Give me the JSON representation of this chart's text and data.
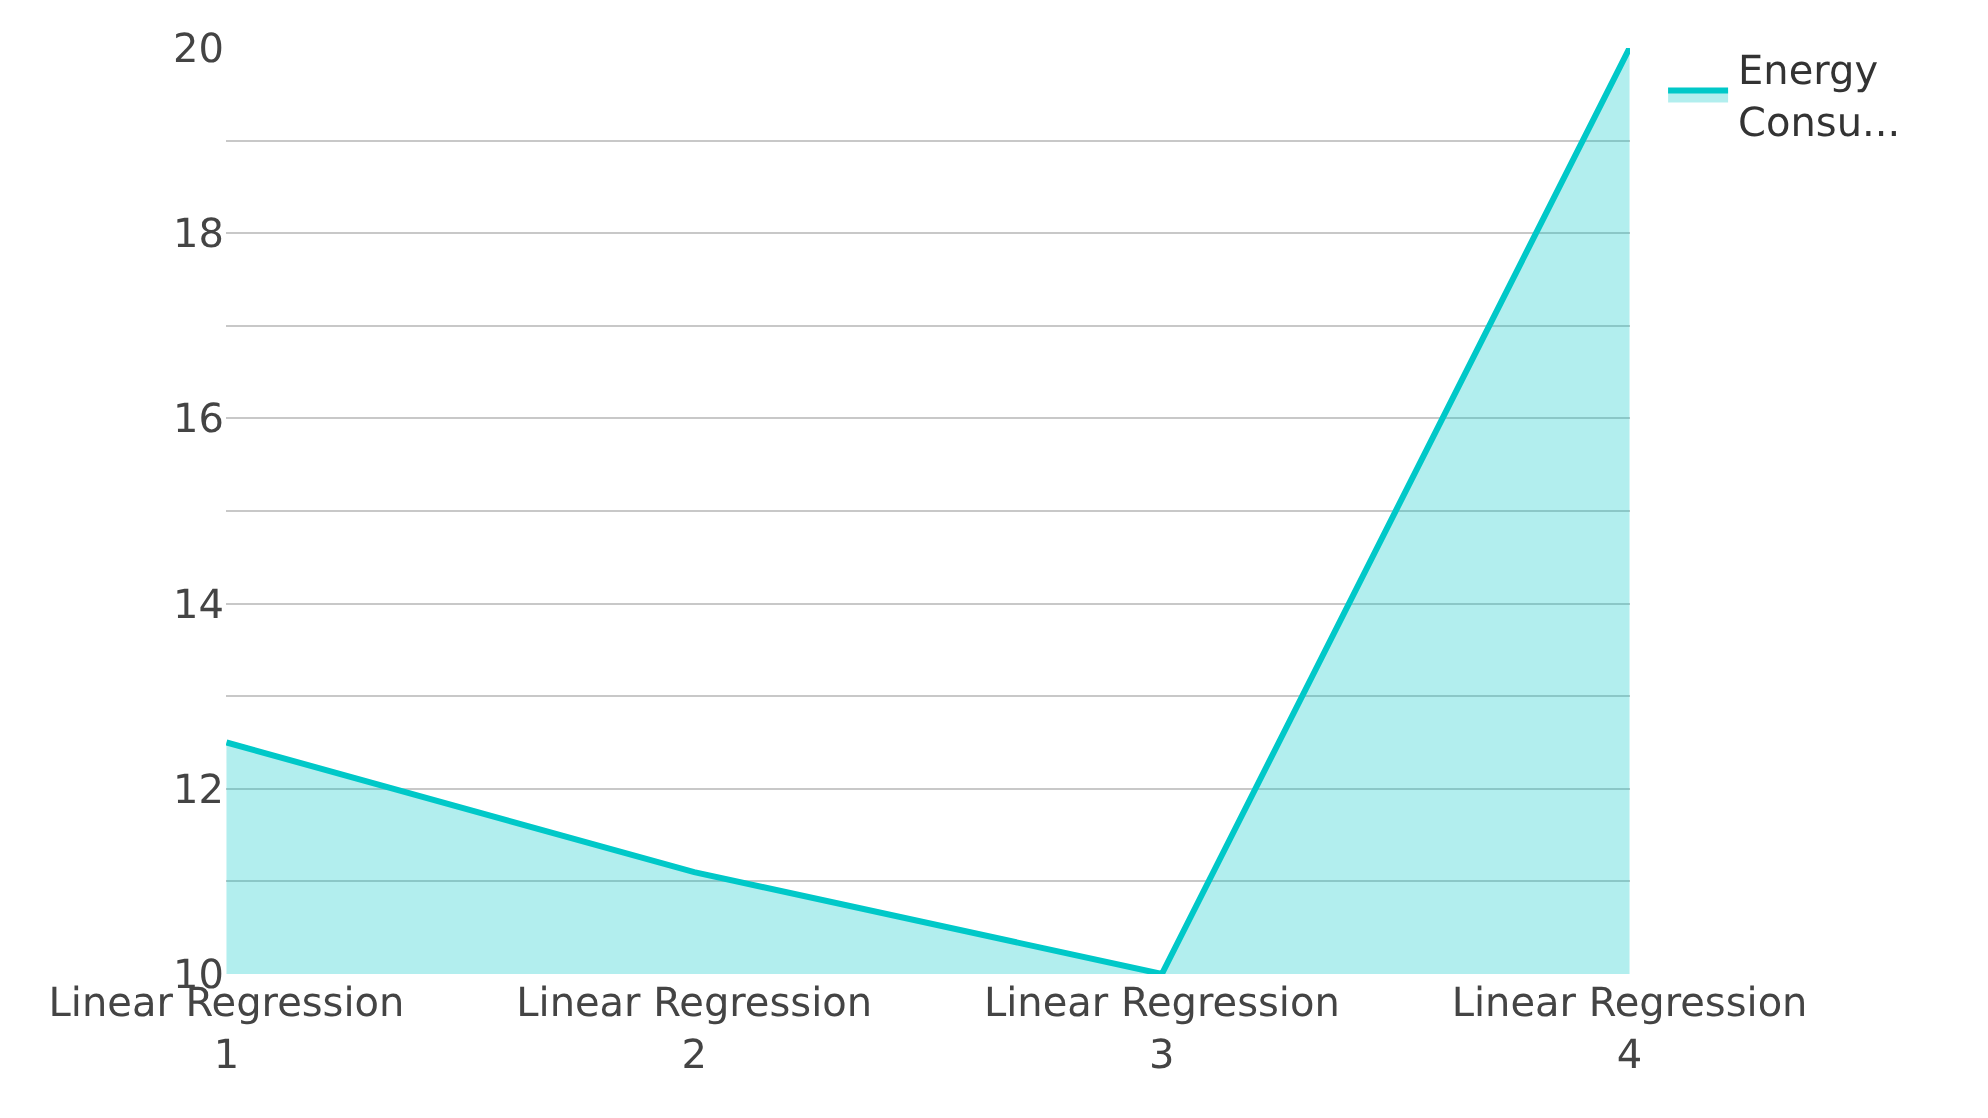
{
  "chart_data": {
    "type": "area",
    "categories": [
      "Linear Regression 1",
      "Linear Regression 2",
      "Linear Regression 3",
      "Linear Regression 4"
    ],
    "series": [
      {
        "name": "Energy Consu...",
        "color": "#00c8c8",
        "values": [
          12.5,
          11.1,
          10,
          20
        ]
      }
    ],
    "ylim": [
      10,
      20
    ],
    "yticks": [
      10,
      {
        "value": 11,
        "label": null
      },
      12,
      {
        "value": 13,
        "label": null
      },
      14,
      {
        "value": 15,
        "label": null
      },
      16,
      {
        "value": 17,
        "label": null
      },
      18,
      {
        "value": 19,
        "label": null
      },
      20
    ],
    "grid": "y",
    "legend": "top right",
    "marker": "none",
    "line_style": "solid"
  }
}
